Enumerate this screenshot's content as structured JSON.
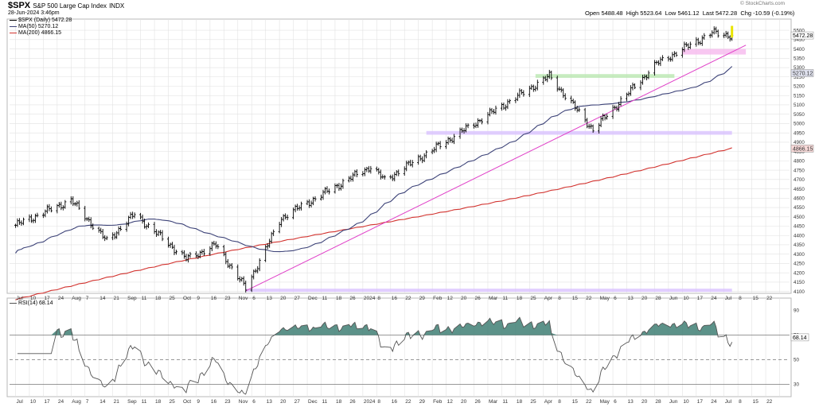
{
  "header": {
    "symbol": "$SPX",
    "name": "S&P 500 Large Cap Index",
    "exchange": "INDX",
    "datetime": "28-Jun-2024 3:46pm",
    "ohlc": {
      "open_label": "Open",
      "open": "5488.48",
      "high_label": "High",
      "high": "5523.64",
      "low_label": "Low",
      "low": "5461.12",
      "last_label": "Last",
      "last": "5472.28",
      "chg_label": "Chg",
      "chg": "-10.59 (-0.19%)"
    },
    "copyright": "© StockCharts.com"
  },
  "legend": {
    "price": "$SPX (Daily) 5472.28",
    "ma50": "MA(50) 5270.12",
    "ma200": "MA(200) 4866.15"
  },
  "rsi_legend": "RSI(14) 68.14",
  "price_tags": {
    "last": "5472.28",
    "ma50": "5270.12",
    "ma200": "4866.15"
  },
  "rsi_tag": "68.14",
  "colors": {
    "price_bars": "#000000",
    "ma50": "#3d4378",
    "ma200": "#d2332f",
    "trendline": "#e040c8",
    "support_band": "#d9c2ff",
    "resistance_band": "#b9e7b0",
    "top_band": "#f6b9ee",
    "rsi_fill": "#3f7f74",
    "rsi_line": "#555555",
    "grid": "#e2e2e2",
    "last_bar": "#e9e400"
  },
  "chart_data": [
    {
      "type": "ohlc",
      "title": "$SPX S&P 500 Large Cap Index INDX",
      "period": "Daily",
      "y_ticks": [
        4100,
        4150,
        4200,
        4250,
        4300,
        4350,
        4400,
        4450,
        4500,
        4550,
        4600,
        4650,
        4700,
        4750,
        4800,
        4850,
        4900,
        4950,
        5000,
        5050,
        5100,
        5150,
        5200,
        5250,
        5300,
        5350,
        5400,
        5450,
        5500
      ],
      "ylim": [
        4090,
        5560
      ],
      "x_tick_labels": [
        "Jul",
        "10",
        "17",
        "24",
        "Aug",
        "7",
        "14",
        "21",
        "Sep",
        "11",
        "18",
        "25",
        "Oct",
        "9",
        "16",
        "23",
        "Nov",
        "6",
        "13",
        "20",
        "27",
        "Dec",
        "11",
        "18",
        "26",
        "2024",
        "8",
        "16",
        "22",
        "29",
        "Feb",
        "12",
        "20",
        "26",
        "Mar",
        "11",
        "18",
        "25",
        "Apr",
        "8",
        "15",
        "22",
        "May",
        "6",
        "13",
        "20",
        "28",
        "Jun",
        "10",
        "17",
        "24",
        "Jul",
        "8",
        "15",
        "22"
      ],
      "key_closes": [
        {
          "date": "2023-07-03",
          "close": 4455
        },
        {
          "date": "2023-07-31",
          "close": 4589
        },
        {
          "date": "2023-08-18",
          "close": 4370
        },
        {
          "date": "2023-09-01",
          "close": 4515
        },
        {
          "date": "2023-09-27",
          "close": 4274
        },
        {
          "date": "2023-10-12",
          "close": 4349
        },
        {
          "date": "2023-10-27",
          "close": 4117
        },
        {
          "date": "2023-11-14",
          "close": 4495
        },
        {
          "date": "2023-12-29",
          "close": 4770
        },
        {
          "date": "2024-01-05",
          "close": 4697
        },
        {
          "date": "2024-03-28",
          "close": 5254
        },
        {
          "date": "2024-04-19",
          "close": 4967
        },
        {
          "date": "2024-05-21",
          "close": 5321
        },
        {
          "date": "2024-06-18",
          "close": 5487
        },
        {
          "date": "2024-06-28",
          "close": 5472
        }
      ],
      "series": [
        {
          "name": "MA(50)",
          "last": 5270.12
        },
        {
          "name": "MA(200)",
          "last": 4866.15
        }
      ],
      "horizontal_bands": [
        {
          "kind": "support",
          "level": [
            4100,
            4115
          ],
          "from": "2023-10-27",
          "to": "2024-06-28"
        },
        {
          "kind": "support",
          "level": [
            4940,
            4960
          ],
          "from": "2024-01-26",
          "to": "2024-06-28"
        },
        {
          "kind": "resistance",
          "level": [
            5245,
            5265
          ],
          "from": "2024-03-21",
          "to": "2024-05-30"
        },
        {
          "kind": "support",
          "level": [
            5370,
            5400
          ],
          "from": "2024-06-03",
          "to": "2024-07-05"
        }
      ],
      "trendline": {
        "from": {
          "date": "2023-10-27",
          "value": 4103
        },
        "to": {
          "date": "2024-07-05",
          "value": 5420
        }
      }
    },
    {
      "type": "line",
      "title": "RSI(14)",
      "y_ticks": [
        30,
        50,
        70,
        90
      ],
      "reference_lines": [
        30,
        50,
        70
      ],
      "ylim": [
        20,
        100
      ],
      "last": 68.14
    }
  ]
}
